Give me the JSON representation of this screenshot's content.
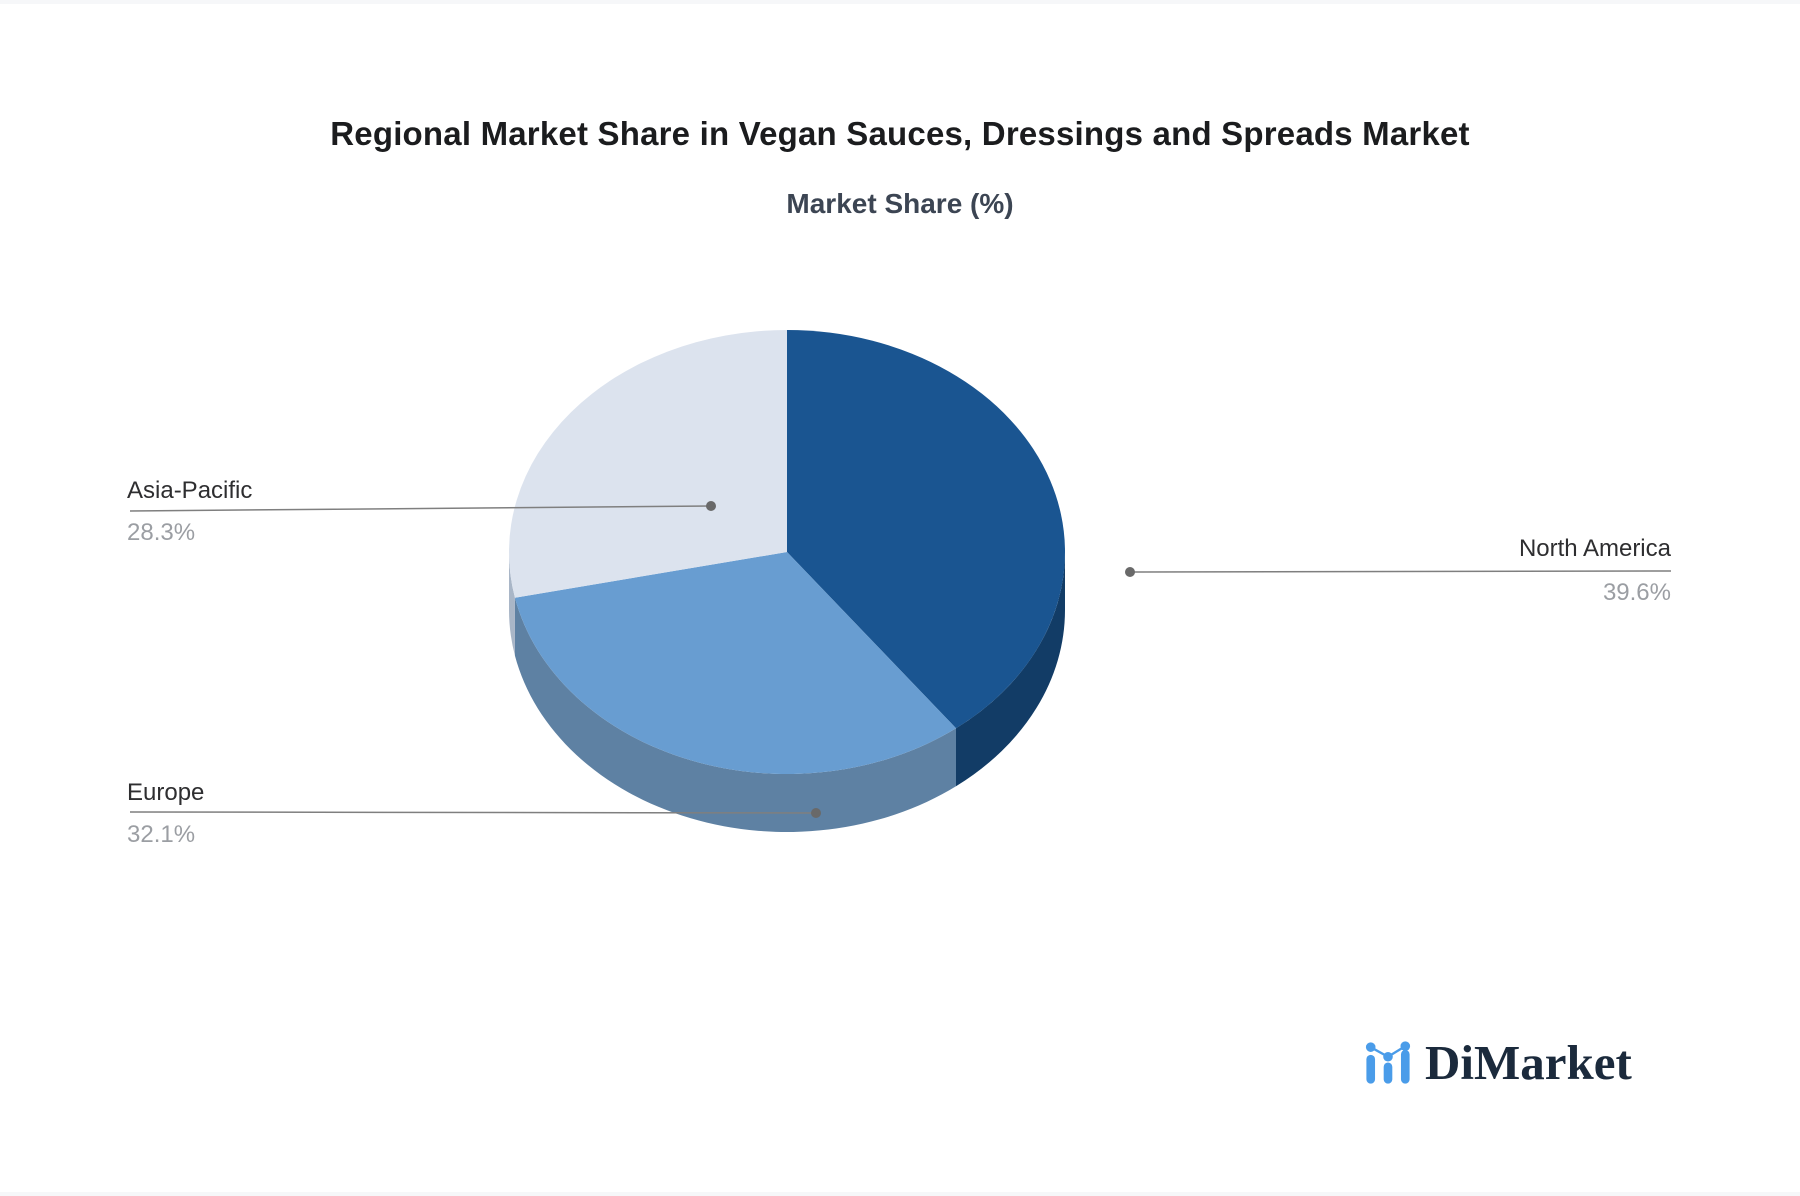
{
  "header": {
    "title": "Regional Market Share in Vegan Sauces, Dressings and Spreads Market",
    "subtitle": "Market Share (%)"
  },
  "chart_data": {
    "type": "pie",
    "title": "Regional Market Share in Vegan Sauces, Dressings and Spreads Market",
    "subtitle": "Market Share (%)",
    "unit": "%",
    "effect": "3d",
    "start_angle_deg": 0,
    "direction": "clockwise",
    "labels_outside": true,
    "slices": [
      {
        "label": "North America",
        "value": 39.6,
        "display": "39.6%",
        "color": "#1A5591",
        "side_color": "#123C66"
      },
      {
        "label": "Europe",
        "value": 32.1,
        "display": "32.1%",
        "color": "#689DD1",
        "side_color": "#5E81A3"
      },
      {
        "label": "Asia-Pacific",
        "value": 28.3,
        "display": "28.3%",
        "color": "#DCE3EE",
        "side_color": "#A9B6C7"
      }
    ]
  },
  "colors": {
    "background": "#FFFFFF",
    "edge_strip": "#F6F7F9",
    "title_text": "#1B1C1E",
    "subtitle_text": "#3C4553",
    "label_text": "#2E2E30",
    "percent_text": "#9B9EA3",
    "leader_line": "#7F7F7F",
    "leader_dot": "#696969",
    "logo_text_color": "#1B2A3C",
    "logo_icon_color": "#4A9CE9"
  },
  "branding": {
    "logo_text": "DiMarket",
    "logo_icon": "bar-line-chart-icon"
  }
}
